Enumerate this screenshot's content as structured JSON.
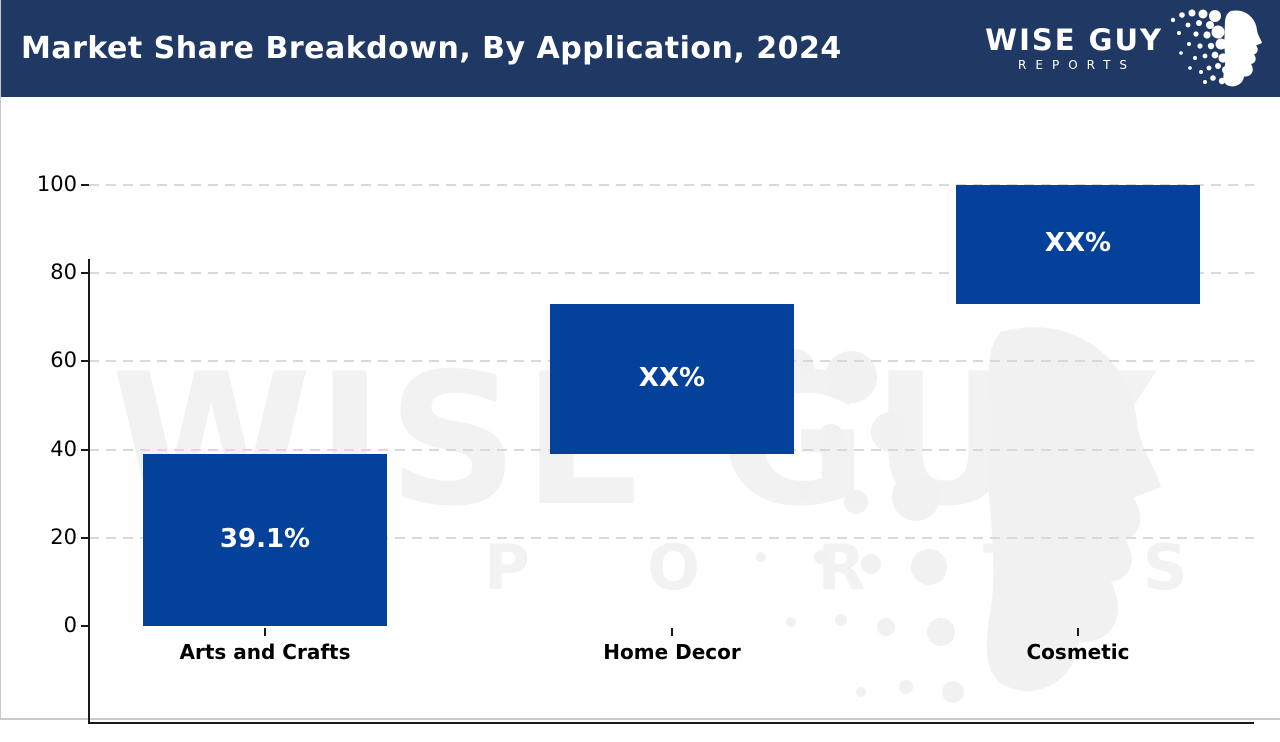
{
  "header": {
    "title": "Market Share Breakdown, By Application, 2024",
    "logo": {
      "line1": "WISE GUY",
      "line2": "REPORTS"
    }
  },
  "watermark": {
    "line1": "WISE GUY",
    "line2": "REPORTS"
  },
  "colors": {
    "header-bg": "#1f3864",
    "bar-color": "#04419b",
    "grid-color": "#d9d9d9",
    "axis-color": "#1a1a1a",
    "wm-color": "#f2f2f2"
  },
  "chart_data": {
    "type": "bar",
    "subtype": "waterfall",
    "title": "Market Share Breakdown, By Application, 2024",
    "categories": [
      "Arts and Crafts",
      "Home Decor",
      "Cosmetic"
    ],
    "series": [
      {
        "name": "Market Share (%)",
        "segments": [
          {
            "category": "Arts and Crafts",
            "start": 0,
            "end": 39.1,
            "label": "39.1%"
          },
          {
            "category": "Home Decor",
            "start": 39.1,
            "end": 73.1,
            "label": "XX%"
          },
          {
            "category": "Cosmetic",
            "start": 73.1,
            "end": 100,
            "label": "XX%"
          }
        ]
      }
    ],
    "xlabel": "",
    "ylabel": "",
    "ylim": [
      0,
      105
    ],
    "yticks": [
      0,
      20,
      40,
      60,
      80,
      100
    ],
    "grid": "horizontal-dashed",
    "legend": "none",
    "bar_label_color": "#ffffff"
  }
}
